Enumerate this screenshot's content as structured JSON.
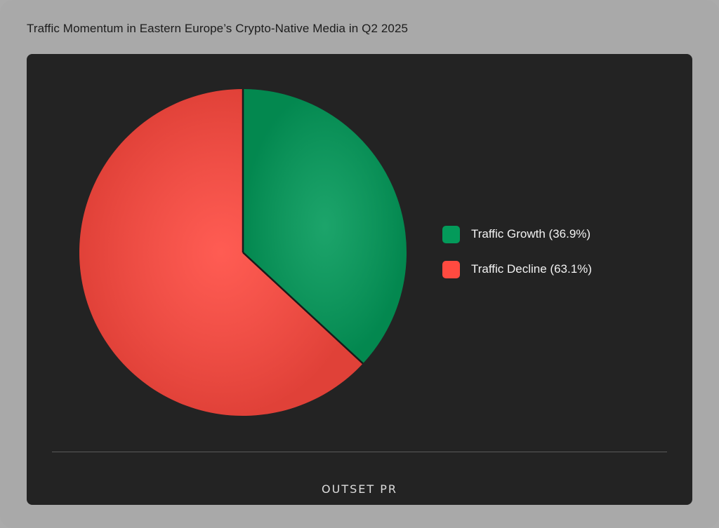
{
  "chart_data": {
    "type": "pie",
    "title": "Traffic Momentum in Eastern Europe’s Crypto-Native Media in Q2 2025",
    "slices": [
      {
        "label": "Traffic Growth (36.9%)",
        "value": 36.9,
        "color": "#039a5a"
      },
      {
        "label": "Traffic Decline (63.1%)",
        "value": 63.1,
        "color": "#ff4a40"
      }
    ],
    "start_angle_deg": 0,
    "direction": "clockwise",
    "legend_position": "right"
  },
  "branding": {
    "logo_text": "OUTSET PR"
  },
  "colors": {
    "page_background": "#a9a9a9",
    "panel_background": "#232323",
    "title_text": "#1c1c1c",
    "legend_text": "#f2f2f2"
  }
}
